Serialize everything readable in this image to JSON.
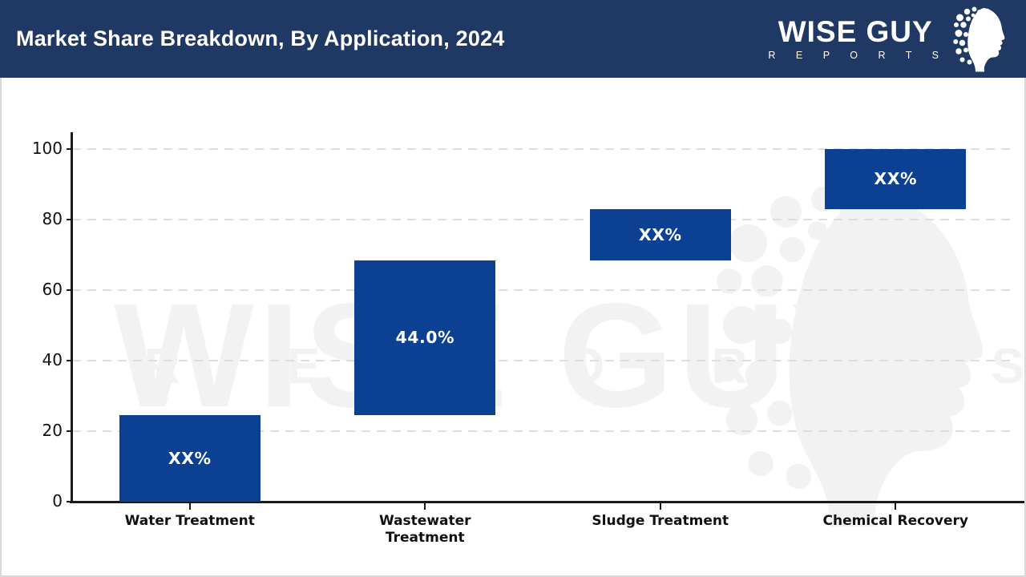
{
  "header": {
    "title": "Market Share Breakdown, By Application, 2024",
    "bg_color": "#1f3864",
    "logo": {
      "brand": "WISE GUY",
      "sub": "R E P O R T S"
    }
  },
  "watermark": {
    "brand": "WISE GUY",
    "sub": "R E P O R T S",
    "color": "#f2f2f2"
  },
  "chart_data": {
    "type": "bar",
    "subtype": "floating-waterfall",
    "title": "Market Share Breakdown, By Application, 2024",
    "categories": [
      "Water Treatment",
      "Wastewater Treatment",
      "Sludge Treatment",
      "Chemical Recovery"
    ],
    "segments": [
      {
        "category": "Water Treatment",
        "start": 0,
        "end": 24.5,
        "label": "XX%"
      },
      {
        "category": "Wastewater Treatment",
        "start": 24.5,
        "end": 68.5,
        "label": "44.0%"
      },
      {
        "category": "Sludge Treatment",
        "start": 68.5,
        "end": 83,
        "label": "XX%"
      },
      {
        "category": "Chemical Recovery",
        "start": 83,
        "end": 100,
        "label": "XX%"
      }
    ],
    "xlabel": "",
    "ylabel": "",
    "ylim": [
      0,
      100
    ],
    "yticks": [
      0,
      20,
      40,
      60,
      80,
      100
    ],
    "grid": "dashed-horizontal",
    "legend": "none",
    "bar_color": "#0b4092",
    "grid_color": "#dedede",
    "axis_color": "#1a1a1a"
  }
}
